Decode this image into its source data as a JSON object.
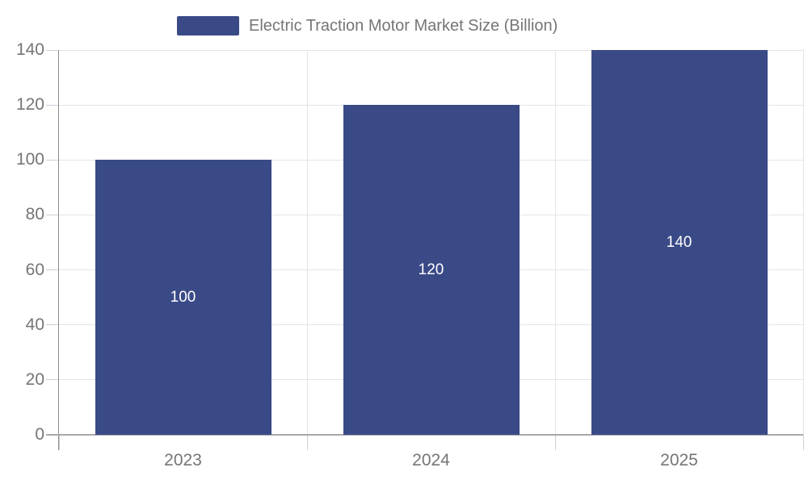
{
  "legend": {
    "label": "Electric Traction Motor Market Size (Billion)"
  },
  "chart_data": {
    "type": "bar",
    "title": "Electric Traction Motor Market Size (Billion)",
    "legend_position": "top-center",
    "categories": [
      "2023",
      "2024",
      "2025"
    ],
    "values": [
      100,
      120,
      140
    ],
    "data_labels": [
      "100",
      "120",
      "140"
    ],
    "ylim": [
      0,
      140
    ],
    "yticks": [
      0,
      20,
      40,
      60,
      80,
      100,
      120,
      140
    ],
    "grid": true,
    "colors": {
      "bar": "#3A4A87",
      "bar_label": "#FFFFFF",
      "gridline": "#E5E5E8",
      "tick": "#CBCFD8",
      "y_axis_line": "#8D8D8D",
      "x_axis_line": "#A8A8A8",
      "tick_label": "#757575",
      "legend_text": "#757575",
      "background": "#FFFFFF"
    }
  }
}
